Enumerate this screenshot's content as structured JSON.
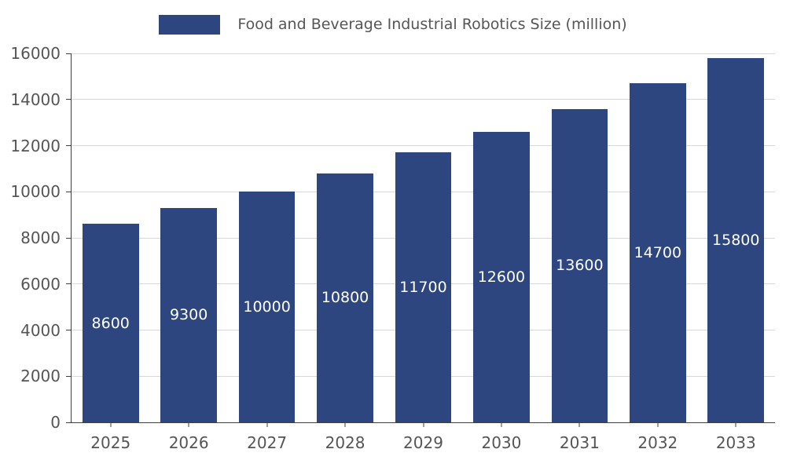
{
  "chart_data": {
    "type": "bar",
    "title": "Food and Beverage Industrial Robotics Size (million)",
    "categories": [
      "2025",
      "2026",
      "2027",
      "2028",
      "2029",
      "2030",
      "2031",
      "2032",
      "2033"
    ],
    "values": [
      8600,
      9300,
      10000,
      10800,
      11700,
      12600,
      13600,
      14700,
      15800
    ],
    "xlabel": "",
    "ylabel": "",
    "ylim": [
      0,
      16000
    ],
    "yticks": [
      0,
      2000,
      4000,
      6000,
      8000,
      10000,
      12000,
      14000,
      16000
    ],
    "grid": true,
    "legend_position": "top",
    "value_labels": "inside-center",
    "colors": {
      "bar": "#2e4680",
      "grid": "#d8d8d8",
      "axis": "#3f3f3f",
      "tick_label": "#555555",
      "title": "#555555",
      "value_label": "#ffffff",
      "background": "#ffffff"
    }
  }
}
